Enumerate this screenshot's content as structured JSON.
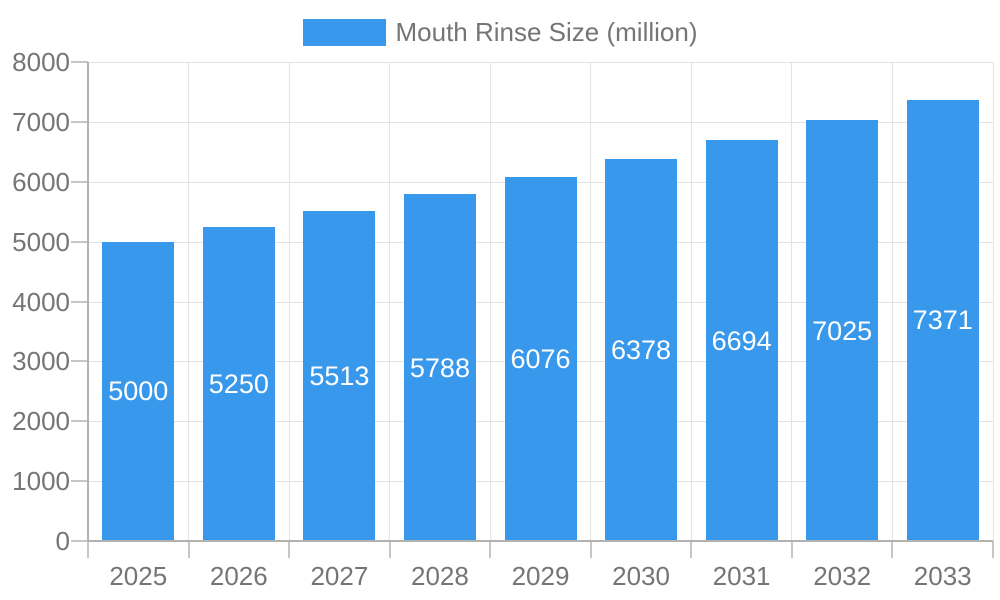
{
  "chart_data": {
    "type": "bar",
    "title": "",
    "series_name": "Mouth Rinse Size (million)",
    "categories": [
      "2025",
      "2026",
      "2027",
      "2028",
      "2029",
      "2030",
      "2031",
      "2032",
      "2033"
    ],
    "values": [
      5000,
      5250,
      5513,
      5788,
      6076,
      6378,
      6694,
      7025,
      7371
    ],
    "xlabel": "",
    "ylabel": "",
    "ylim": [
      0,
      8000
    ],
    "y_ticks": [
      0,
      1000,
      2000,
      3000,
      4000,
      5000,
      6000,
      7000,
      8000
    ],
    "grid": "on",
    "legend_position": "top",
    "value_label_position": "inside-center",
    "colors": {
      "bar": "#3898EC",
      "value_label": "#FFFFFF",
      "axis_text": "#757575",
      "axis_line": "#B2B2B2",
      "gridline": "#E3E3E3",
      "tick": "#C6C6C6",
      "background": "#FFFFFF"
    }
  }
}
